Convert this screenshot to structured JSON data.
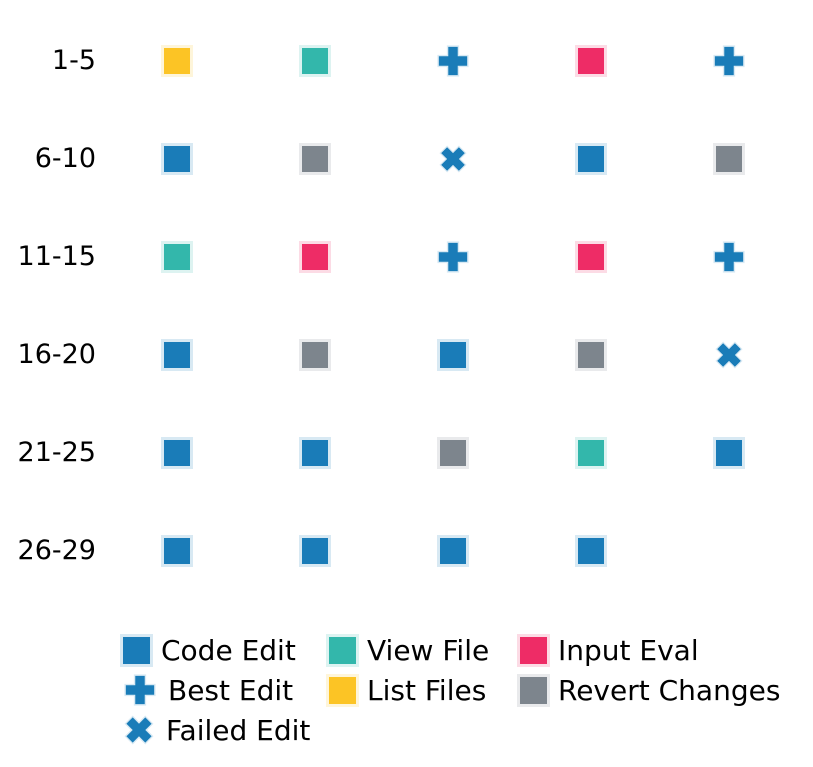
{
  "chart_data": {
    "type": "scatter",
    "title": "",
    "xlabel": "",
    "ylabel": "",
    "grid_lines": false,
    "legend_position": "bottom",
    "rows": [
      "1-5",
      "6-10",
      "11-15",
      "16-20",
      "21-25",
      "26-29"
    ],
    "grid": [
      [
        "list_files",
        "view_file",
        "best_edit",
        "input_eval",
        "best_edit"
      ],
      [
        "code_edit",
        "revert_changes",
        "failed_edit",
        "code_edit",
        "revert_changes"
      ],
      [
        "view_file",
        "input_eval",
        "best_edit",
        "input_eval",
        "best_edit"
      ],
      [
        "code_edit",
        "revert_changes",
        "code_edit",
        "revert_changes",
        "failed_edit"
      ],
      [
        "code_edit",
        "code_edit",
        "revert_changes",
        "view_file",
        "code_edit"
      ],
      [
        "code_edit",
        "code_edit",
        "code_edit",
        "code_edit"
      ]
    ],
    "legend": [
      {
        "key": "code_edit",
        "label": "Code Edit",
        "marker": "square",
        "color": "#1a7cb8"
      },
      {
        "key": "view_file",
        "label": "View File",
        "marker": "square",
        "color": "#33b7ab"
      },
      {
        "key": "input_eval",
        "label": "Input Eval",
        "marker": "square",
        "color": "#ee2c66"
      },
      {
        "key": "best_edit",
        "label": "Best Edit",
        "marker": "plus",
        "color": "#1a7cb8"
      },
      {
        "key": "list_files",
        "label": "List Files",
        "marker": "square",
        "color": "#fcc425"
      },
      {
        "key": "revert_changes",
        "label": "Revert Changes",
        "marker": "square",
        "color": "#7d858d"
      },
      {
        "key": "failed_edit",
        "label": "Failed Edit",
        "marker": "x",
        "color": "#1a7cb8"
      }
    ]
  }
}
